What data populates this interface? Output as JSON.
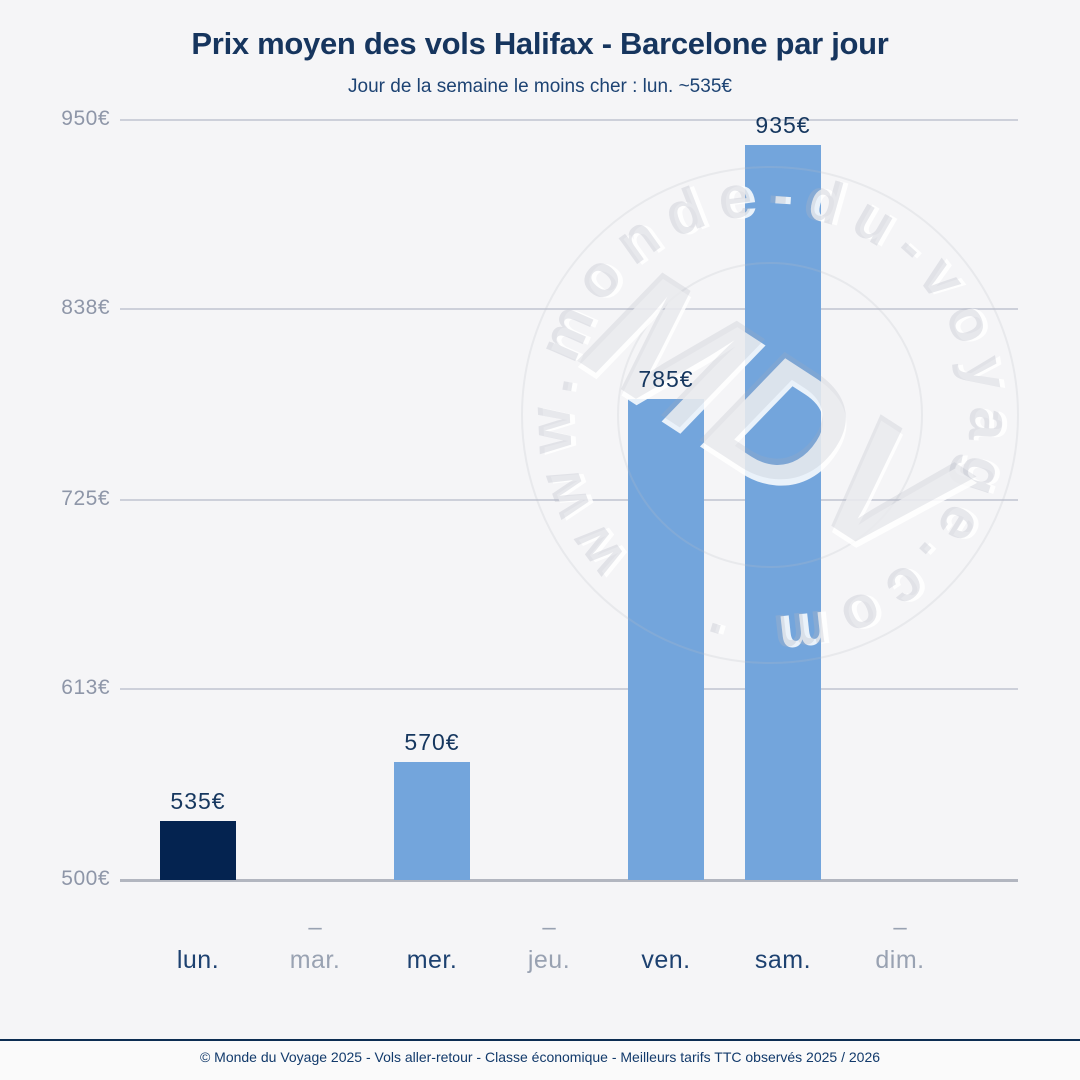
{
  "title": "Prix moyen des vols Halifax - Barcelone par jour",
  "subtitle": "Jour de la semaine le moins cher : lun. ~535€",
  "footer": "© Monde du Voyage 2025 - Vols aller-retour - Classe économique - Meilleurs tarifs TTC observés 2025 / 2026",
  "watermark": {
    "ring_text": "www.monde-du-voyage.com ·",
    "center_text": "MDV"
  },
  "colors": {
    "background": "#f5f5f7",
    "bar": "#73a5dc",
    "bar_highlight": "#042350",
    "title_text": "#16355e",
    "active_label": "#1d4170",
    "inactive_label": "#99a2b2",
    "gridline": "#cdd0da",
    "baseline": "#b2b6c0"
  },
  "chart_data": {
    "type": "bar",
    "title": "Prix moyen des vols Halifax - Barcelone par jour",
    "subtitle": "Jour de la semaine le moins cher : lun. ~535€",
    "categories": [
      "lun.",
      "mar.",
      "mer.",
      "jeu.",
      "ven.",
      "sam.",
      "dim."
    ],
    "values": [
      535,
      null,
      570,
      null,
      785,
      935,
      null
    ],
    "value_labels": [
      "535€",
      null,
      "570€",
      null,
      "785€",
      "935€",
      null
    ],
    "highlight_index": 0,
    "ylim": [
      500,
      950
    ],
    "ytick_values": [
      950,
      838,
      725,
      613,
      500
    ],
    "ytick_labels": [
      "950€",
      "838€",
      "725€",
      "613€",
      "500€"
    ],
    "no_data_marker": "–",
    "grid": true,
    "legend": false,
    "currency": "€"
  }
}
